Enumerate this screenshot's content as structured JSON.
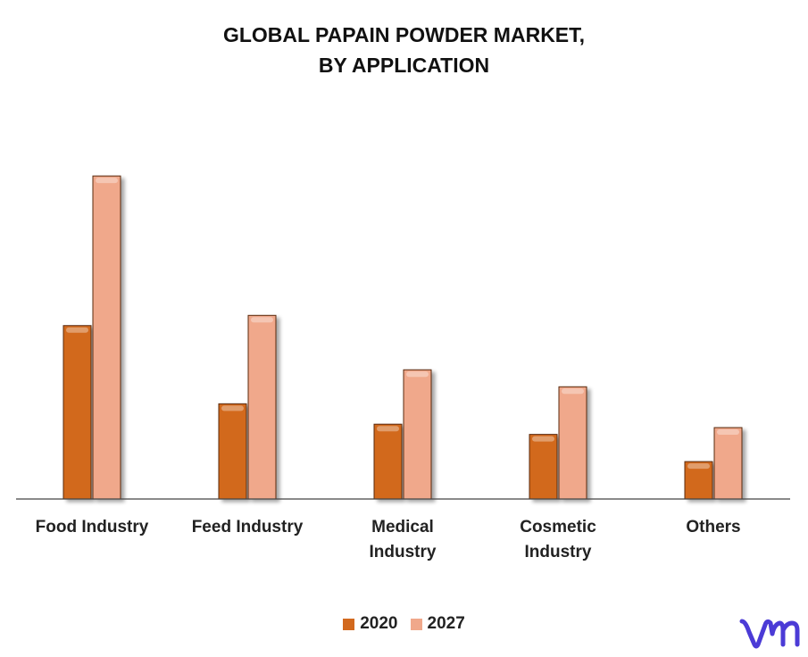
{
  "chart_data": {
    "type": "bar",
    "title_lines": [
      "GLOBAL PAPAIN POWDER MARKET,",
      "BY APPLICATION"
    ],
    "categories": [
      [
        "Food Industry"
      ],
      [
        "Feed Industry"
      ],
      [
        "Medical",
        "Industry"
      ],
      [
        "Cosmetic",
        "Industry"
      ],
      [
        "Others"
      ]
    ],
    "series": [
      {
        "name": "2020",
        "color": "#d2691e",
        "values": [
          5.1,
          2.8,
          2.2,
          1.9,
          1.1
        ]
      },
      {
        "name": "2027",
        "color": "#f0a88b",
        "values": [
          9.5,
          5.4,
          3.8,
          3.3,
          2.1
        ]
      }
    ],
    "ylim": [
      0,
      11
    ],
    "grid": false,
    "legend_position": "bottom-center"
  },
  "logo": {
    "icon": "vmr-logo-icon",
    "color": "#4b3bd6"
  }
}
